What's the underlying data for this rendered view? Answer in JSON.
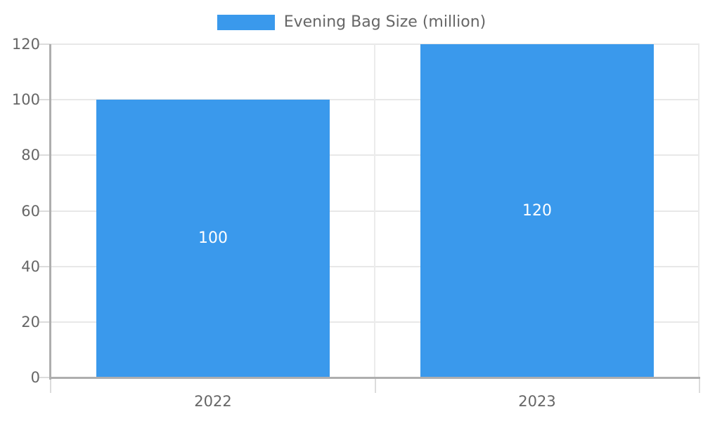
{
  "chart_data": {
    "type": "bar",
    "title": "Evening Bag Size (million)",
    "categories": [
      "2022",
      "2023"
    ],
    "series": [
      {
        "name": "Evening Bag Size (million)",
        "values": [
          100,
          120
        ]
      }
    ],
    "value_labels": [
      "100",
      "120"
    ],
    "y_ticks": [
      0,
      20,
      40,
      60,
      80,
      100,
      120
    ],
    "ylim": [
      0,
      120
    ],
    "xlabel": "",
    "ylabel": "",
    "grid": true,
    "legend_position": "top-center",
    "colors": {
      "bar": "#3A99EC",
      "value_label": "#FFFFFF",
      "grid_line": "#E8E8E8",
      "boundary_line": "#EBEBEB",
      "axis_line": "#AEAEAE",
      "tick": "#DCDCDC",
      "text": "#666666",
      "background": "#FFFFFF"
    }
  },
  "legend": {
    "label": "Evening Bag Size (million)"
  }
}
